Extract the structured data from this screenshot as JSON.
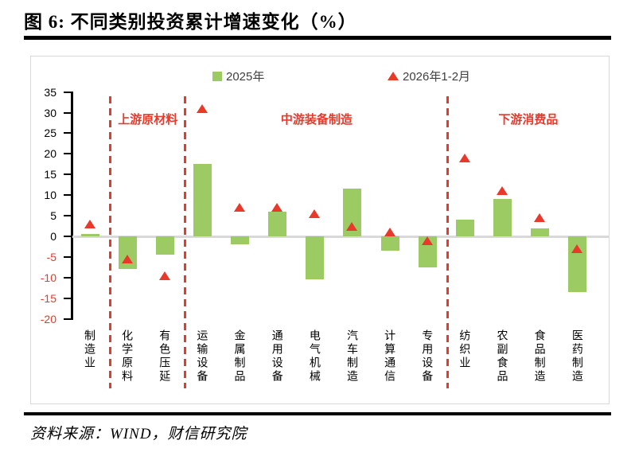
{
  "page": {
    "title": "图 6:  不同类别投资累计增速变化（%）",
    "source": "资料来源：WIND，财信研究院"
  },
  "chart_data": {
    "type": "bar",
    "title": "图 6:  不同类别投资累计增速变化（%）",
    "categories": [
      "制造业",
      "化学原料",
      "有色压延",
      "运输设备",
      "金属制品",
      "通用设备",
      "电气机械",
      "汽车制造",
      "计算通信",
      "专用设备",
      "纺织业",
      "农副食品",
      "食品制造",
      "医药制造"
    ],
    "series": [
      {
        "name": "2025年",
        "type": "bar",
        "color": "#9CCB63",
        "values": [
          0.5,
          -8,
          -4.5,
          17.5,
          -2,
          6,
          -10.5,
          11.5,
          -3.5,
          -7.5,
          4,
          9,
          2,
          -13.5
        ]
      },
      {
        "name": "2026年1-2月",
        "type": "scatter-triangle",
        "color": "#E8392B",
        "values": [
          3,
          -5.5,
          -9.5,
          31,
          7,
          7,
          5.5,
          2.5,
          1,
          -1,
          19,
          11,
          4.5,
          -3
        ]
      }
    ],
    "xlabel": "",
    "ylabel": "",
    "ylim": [
      -20,
      35
    ],
    "ytick_step": 5,
    "grid": "zero-line-only",
    "legend_position": "top-center",
    "groups": [
      {
        "label": "上游原材料",
        "start": 1,
        "end": 2
      },
      {
        "label": "中游装备制造",
        "start": 3,
        "end": 9
      },
      {
        "label": "下游消费品",
        "start": 10,
        "end": 13
      }
    ],
    "separators_after_index": [
      0,
      2,
      9
    ],
    "colors": {
      "bar": "#9CCB63",
      "marker": "#E8392B",
      "separator": "#E8392B",
      "group_label": "#E8392B",
      "negative_tick_label": "#E8392B",
      "zero_line": "#D9D9D9",
      "axis": "#000000",
      "box_border": "#D9D9D9"
    }
  }
}
